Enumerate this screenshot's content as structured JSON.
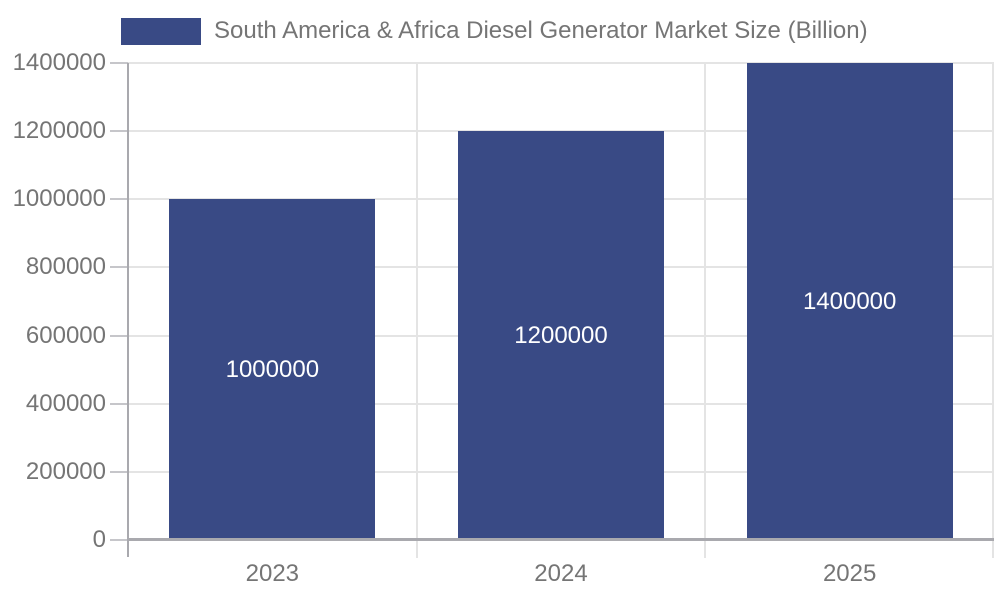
{
  "chart_data": {
    "type": "bar",
    "title": "South America & Africa Diesel Generator Market Size (Billion)",
    "categories": [
      "2023",
      "2024",
      "2025"
    ],
    "values": [
      1000000,
      1200000,
      1400000
    ],
    "bar_labels": [
      "1000000",
      "1200000",
      "1400000"
    ],
    "xlabel": "",
    "ylabel": "",
    "ylim": [
      0,
      1400000
    ],
    "yticks": [
      0,
      200000,
      400000,
      600000,
      800000,
      1000000,
      1200000,
      1400000
    ],
    "ytick_labels": [
      "0",
      "200000",
      "400000",
      "600000",
      "800000",
      "1000000",
      "1200000",
      "1400000"
    ],
    "grid": true,
    "legend_position": "top-left",
    "value_labels_position": "center-inside"
  },
  "colors": {
    "bar": "#394a85",
    "grid_line": "#e4e4e4",
    "tick_mark": "#c6c6ca",
    "axis_line": "#a9a9ae",
    "label_text": "#757575",
    "value_label_text": "#ffffff",
    "background": "#ffffff"
  }
}
